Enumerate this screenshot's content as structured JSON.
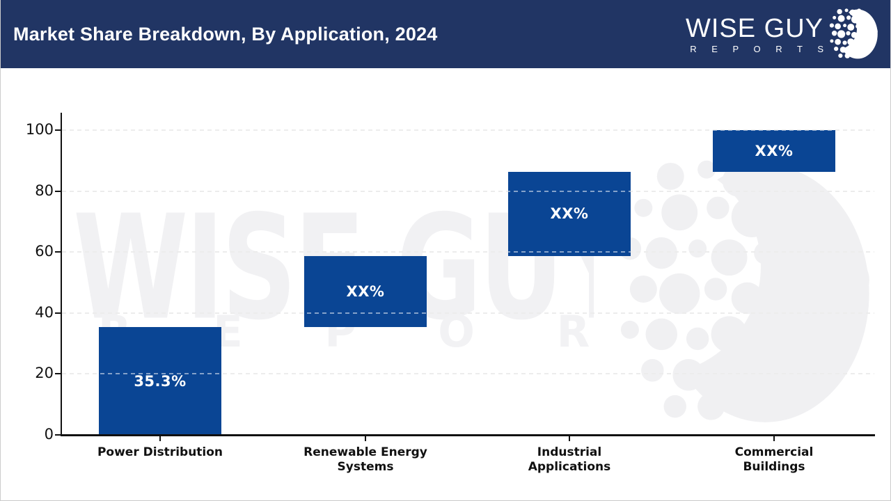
{
  "header": {
    "title": "Market Share Breakdown, By Application, 2024",
    "background_color": "#213564"
  },
  "logo": {
    "brand_line1": "WISE GUY",
    "brand_line2": "R E P O R T S"
  },
  "watermark": {
    "line1": "WISE GUY",
    "line2": "R E P O R T S"
  },
  "chart_data": {
    "type": "bar",
    "subtype": "waterfall",
    "title": "Market Share Breakdown, By Application, 2024",
    "xlabel": "",
    "ylabel": "",
    "ylim": [
      0,
      100
    ],
    "yticks": [
      0,
      20,
      40,
      60,
      80,
      100
    ],
    "grid": "horizontal dashed",
    "legend": "none",
    "bar_color": "#0a4594",
    "gridline_color": "#d9d9d9",
    "categories": [
      "Power Distribution",
      "Renewable Energy\nSystems",
      "Industrial\nApplications",
      "Commercial\nBuildings"
    ],
    "segments": [
      {
        "category": "Power Distribution",
        "start": 0,
        "end": 35.3,
        "label": "35.3%"
      },
      {
        "category": "Renewable Energy Systems",
        "start": 35.3,
        "end": 58.7,
        "label": "XX%"
      },
      {
        "category": "Industrial Applications",
        "start": 58.7,
        "end": 86.3,
        "label": "XX%"
      },
      {
        "category": "Commercial Buildings",
        "start": 86.3,
        "end": 100,
        "label": "XX%"
      }
    ]
  }
}
